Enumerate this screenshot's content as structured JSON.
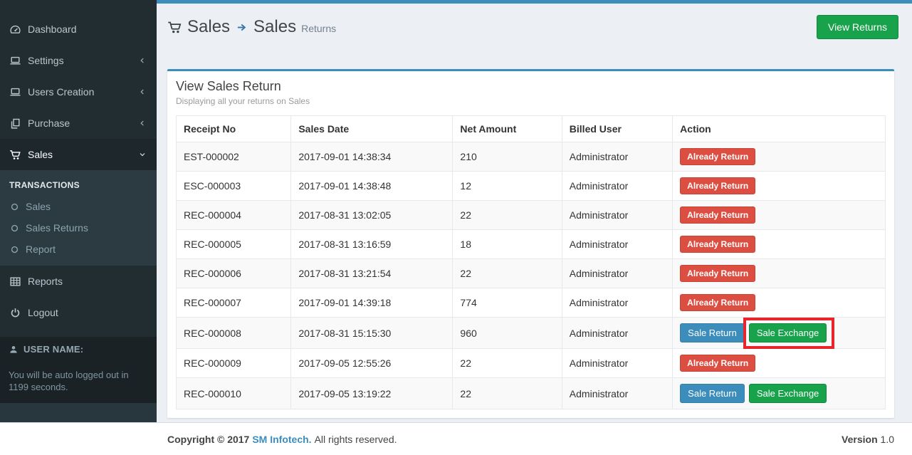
{
  "colors": {
    "sidebar_bg": "#222d32",
    "sidebar_active_bg": "#1e282c",
    "submenu_bg": "#2c3b41",
    "accent_blue": "#3c8dbc",
    "button_green": "#17a24b",
    "badge_red": "#dc4e41",
    "highlight_red": "#e8242c",
    "content_bg": "#ecf0f5"
  },
  "sidebar": {
    "items": [
      {
        "label": "Dashboard",
        "icon": "dashboard-icon"
      },
      {
        "label": "Settings",
        "icon": "laptop-icon",
        "chevron": "left"
      },
      {
        "label": "Users Creation",
        "icon": "laptop-icon",
        "chevron": "left"
      },
      {
        "label": "Purchase",
        "icon": "copy-icon",
        "chevron": "left"
      },
      {
        "label": "Sales",
        "icon": "cart-icon",
        "chevron": "down",
        "active": true
      }
    ],
    "transactions_header": "TRANSACTIONS",
    "submenu": [
      {
        "label": "Sales"
      },
      {
        "label": "Sales Returns"
      },
      {
        "label": "Report"
      }
    ],
    "items_bottom": [
      {
        "label": "Reports",
        "icon": "table-icon"
      },
      {
        "label": "Logout",
        "icon": "power-icon"
      }
    ],
    "user_label": "USER NAME:",
    "auto_logout_text": "You will be auto logged out in 1199 seconds."
  },
  "header": {
    "crumb_primary": "Sales",
    "crumb_secondary": "Sales",
    "crumb_tertiary": "Returns",
    "view_returns_button": "View Returns"
  },
  "panel": {
    "title": "View Sales Return",
    "subtitle": "Displaying all your returns on Sales"
  },
  "table": {
    "columns": [
      "Receipt No",
      "Sales Date",
      "Net Amount",
      "Billed User",
      "Action"
    ],
    "rows": [
      {
        "receipt": "EST-000002",
        "date": "2017-09-01 14:38:34",
        "amount": "210",
        "user": "Administrator",
        "actions": [
          {
            "label": "Already Return",
            "style": "danger",
            "interactable": false
          }
        ]
      },
      {
        "receipt": "ESC-000003",
        "date": "2017-09-01 14:38:48",
        "amount": "12",
        "user": "Administrator",
        "actions": [
          {
            "label": "Already Return",
            "style": "danger",
            "interactable": false
          }
        ]
      },
      {
        "receipt": "REC-000004",
        "date": "2017-08-31 13:02:05",
        "amount": "22",
        "user": "Administrator",
        "actions": [
          {
            "label": "Already Return",
            "style": "danger",
            "interactable": false
          }
        ]
      },
      {
        "receipt": "REC-000005",
        "date": "2017-08-31 13:16:59",
        "amount": "18",
        "user": "Administrator",
        "actions": [
          {
            "label": "Already Return",
            "style": "danger",
            "interactable": false
          }
        ]
      },
      {
        "receipt": "REC-000006",
        "date": "2017-08-31 13:21:54",
        "amount": "22",
        "user": "Administrator",
        "actions": [
          {
            "label": "Already Return",
            "style": "danger",
            "interactable": false
          }
        ]
      },
      {
        "receipt": "REC-000007",
        "date": "2017-09-01 14:39:18",
        "amount": "774",
        "user": "Administrator",
        "actions": [
          {
            "label": "Already Return",
            "style": "danger",
            "interactable": false
          }
        ]
      },
      {
        "receipt": "REC-000008",
        "date": "2017-08-31 15:15:30",
        "amount": "960",
        "user": "Administrator",
        "actions": [
          {
            "label": "Sale Return",
            "style": "primary",
            "interactable": true
          },
          {
            "label": "Sale Exchange",
            "style": "success",
            "interactable": true,
            "highlighted": true
          }
        ]
      },
      {
        "receipt": "REC-000009",
        "date": "2017-09-05 12:55:26",
        "amount": "22",
        "user": "Administrator",
        "actions": [
          {
            "label": "Already Return",
            "style": "danger",
            "interactable": false
          }
        ]
      },
      {
        "receipt": "REC-000010",
        "date": "2017-09-05 13:19:22",
        "amount": "22",
        "user": "Administrator",
        "actions": [
          {
            "label": "Sale Return",
            "style": "primary",
            "interactable": true
          },
          {
            "label": "Sale Exchange",
            "style": "success",
            "interactable": true
          }
        ]
      }
    ]
  },
  "footer": {
    "copyright_bold": "Copyright © 2017",
    "link": "SM Infotech.",
    "suffix": "All rights reserved.",
    "version_label": "Version",
    "version_value": "1.0"
  }
}
